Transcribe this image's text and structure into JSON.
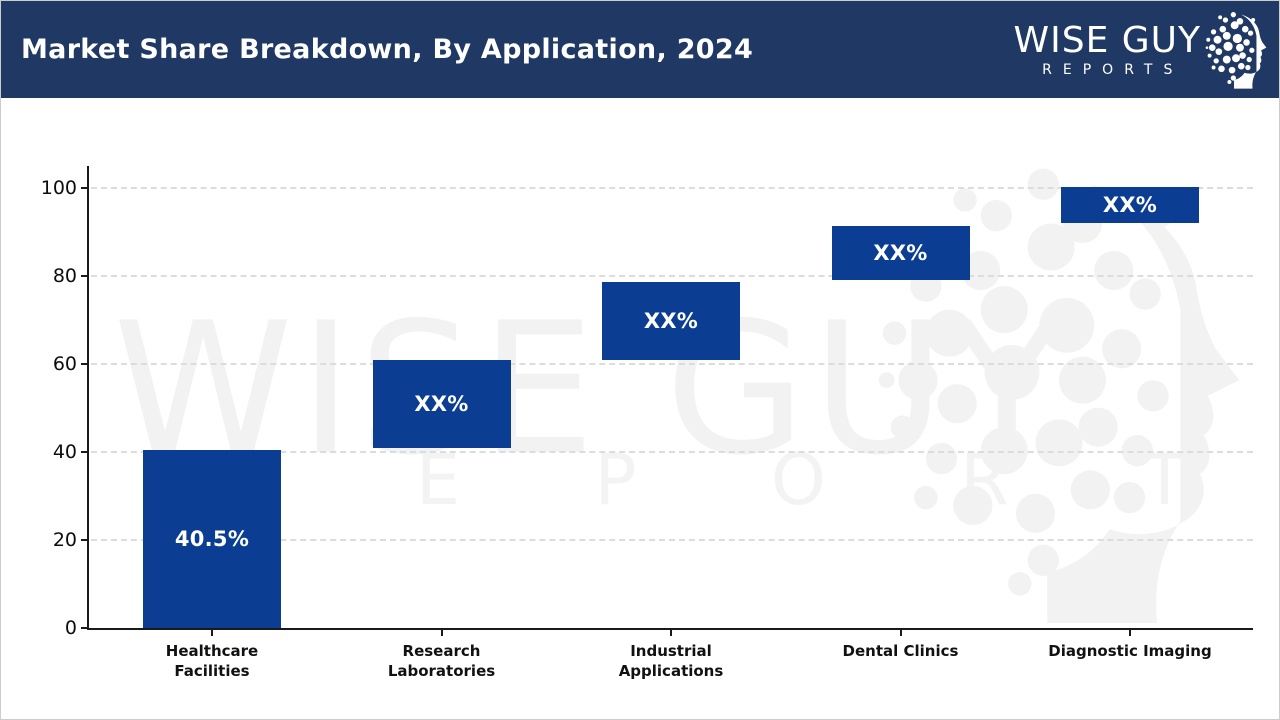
{
  "header": {
    "title": "Market Share Breakdown, By Application, 2024",
    "background_color": "#203864"
  },
  "logo": {
    "line1": "WISE GUY",
    "line2": "REPORTS",
    "icon": "dotted-head-profile-icon"
  },
  "watermark": {
    "line1": "WISE GUY",
    "line2": "R E P O R T S",
    "icon": "dotted-head-profile-icon"
  },
  "chart_data": {
    "type": "bar",
    "subtype": "floating-waterfall",
    "title": "Market Share Breakdown, By Application, 2024",
    "xlabel": "",
    "ylabel": "",
    "ylim": [
      0,
      105
    ],
    "yticks": [
      0,
      20,
      40,
      60,
      80,
      100
    ],
    "grid": "horizontal-dashed",
    "legend": "none",
    "bar_color": "#0b3e92",
    "value_label_color": "#ffffff",
    "categories": [
      "Healthcare Facilities",
      "Research Laboratories",
      "Industrial Applications",
      "Dental Clinics",
      "Diagnostic Imaging"
    ],
    "bars": [
      {
        "category": "Healthcare Facilities",
        "label_lines": [
          "Healthcare",
          "Facilities"
        ],
        "start": 0,
        "end": 40.5,
        "value_label": "40.5%"
      },
      {
        "category": "Research Laboratories",
        "label_lines": [
          "Research",
          "Laboratories"
        ],
        "start": 41,
        "end": 61,
        "value_label": "XX%"
      },
      {
        "category": "Industrial Applications",
        "label_lines": [
          "Industrial",
          "Applications"
        ],
        "start": 61,
        "end": 78.7,
        "value_label": "XX%"
      },
      {
        "category": "Dental Clinics",
        "label_lines": [
          "Dental Clinics"
        ],
        "start": 79,
        "end": 91.4,
        "value_label": "XX%"
      },
      {
        "category": "Diagnostic Imaging",
        "label_lines": [
          "Diagnostic Imaging"
        ],
        "start": 92,
        "end": 100.3,
        "value_label": "XX%"
      }
    ]
  }
}
